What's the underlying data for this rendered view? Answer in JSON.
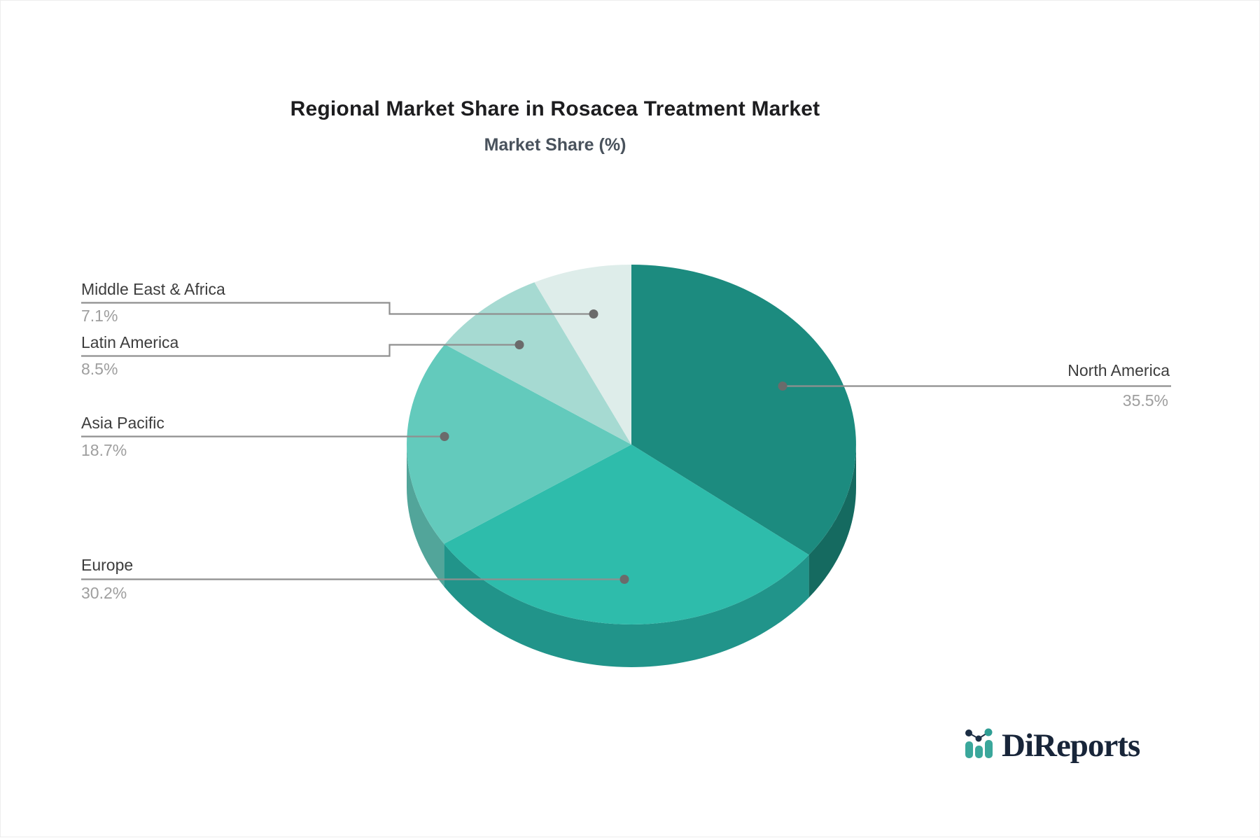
{
  "header": {
    "title": "Regional Market Share in Rosacea Treatment Market",
    "subtitle": "Market Share (%)"
  },
  "chart_data": {
    "type": "pie",
    "title": "Regional Market Share in Rosacea Treatment Market",
    "subtitle": "Market Share (%)",
    "unit": "%",
    "style": "3d-pie-with-callout-labels",
    "direction": "clockwise",
    "start_angle": "top",
    "legend_position": "none",
    "slices": [
      {
        "label": "North America",
        "value": 35.5,
        "display": "35.5%",
        "color": "#1c8b7f",
        "side_color": "#156a60"
      },
      {
        "label": "Europe",
        "value": 30.2,
        "display": "30.2%",
        "color": "#2ebcab",
        "side_color": "#21948a"
      },
      {
        "label": "Asia Pacific",
        "value": 18.7,
        "display": "18.7%",
        "color": "#63cabc",
        "side_color": "#52a59a"
      },
      {
        "label": "Latin America",
        "value": 8.5,
        "display": "8.5%",
        "color": "#a6dad2",
        "side_color": "#8fc5bd"
      },
      {
        "label": "Middle East & Africa",
        "value": 7.1,
        "display": "7.1%",
        "color": "#deedea",
        "side_color": "#c2d8d4"
      }
    ],
    "callout_line_color": "#8f8f8f",
    "callout_dot_color": "#6b6b6b"
  },
  "logo": {
    "text": "DiReports"
  }
}
